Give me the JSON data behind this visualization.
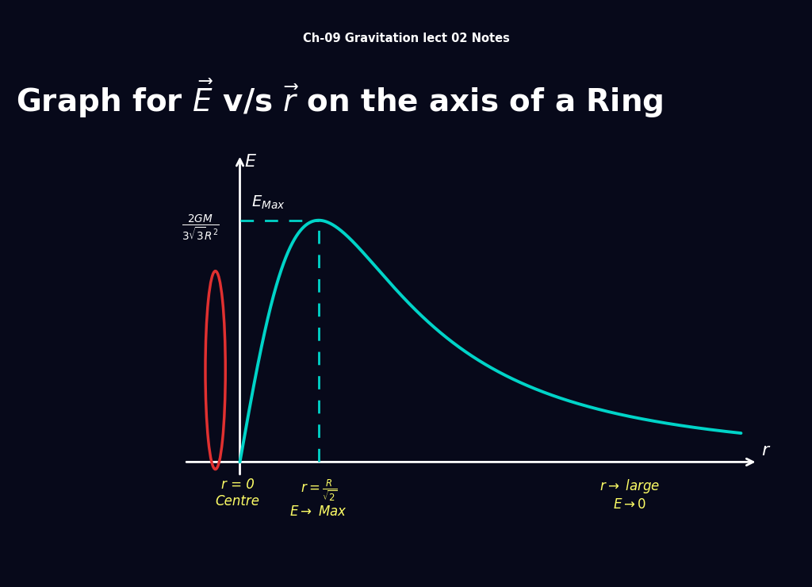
{
  "title_top": "Ch-09 Gravitation lect 02 Notes",
  "title_main": "Graph for $\\vec{E}$ v/s $\\vec{r}$ on the axis of a Ring",
  "bg_dark": "#07091a",
  "bg_plot": "#05081a",
  "header_bg": "#b81f2a",
  "curve_color": "#00d4c8",
  "ring_color": "#e03030",
  "axis_color": "#ffffff",
  "dashed_color": "#00d4c8",
  "text_color": "#ffffff",
  "annotation_color": "#ffff66",
  "figsize": [
    10.24,
    7.4
  ],
  "dpi": 100,
  "R": 1.0,
  "GM": 1.0,
  "r_end": 4.5
}
